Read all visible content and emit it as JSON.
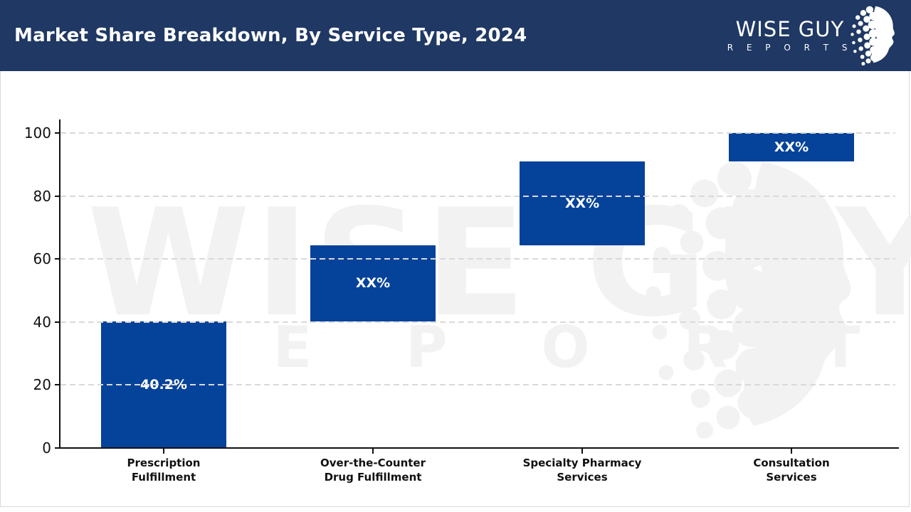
{
  "header": {
    "bg_color": "#1F3864",
    "title": "Market Share Breakdown, By Service Type, 2024",
    "logo": {
      "name": "WISE GUY",
      "sub": "R E P O R T S"
    }
  },
  "watermark": {
    "text_main": "WISE GUY",
    "text_sub": "R E P O R T S"
  },
  "chart_data": {
    "type": "bar",
    "subtype": "waterfall",
    "title": "Market Share Breakdown, By Service Type, 2024",
    "categories": [
      [
        "Prescription",
        "Fulfillment"
      ],
      [
        "Over-the-Counter",
        "Drug Fulfillment"
      ],
      [
        "Specialty Pharmacy",
        "Services"
      ],
      [
        "Consultation",
        "Services"
      ]
    ],
    "segments": [
      {
        "name": "Prescription Fulfillment",
        "start": 0,
        "end": 40.2,
        "label": "40.2%"
      },
      {
        "name": "Over-the-Counter Drug Fulfillment",
        "start": 40.2,
        "end": 64.4,
        "label": "XX%"
      },
      {
        "name": "Specialty Pharmacy Services",
        "start": 64.4,
        "end": 91.0,
        "label": "XX%"
      },
      {
        "name": "Consultation Services",
        "start": 91.0,
        "end": 100,
        "label": "XX%"
      }
    ],
    "yticks": [
      0,
      20,
      40,
      60,
      80,
      100
    ],
    "ylim": [
      0,
      100
    ],
    "xlabel": "",
    "ylabel": "",
    "grid": "dashed horizontal, drawn over bars",
    "legend": "none",
    "bar_color": "#05429A",
    "bar_label_color": "#ffffff",
    "grid_color": "#d9d9d9",
    "axis_color": "#111111"
  }
}
